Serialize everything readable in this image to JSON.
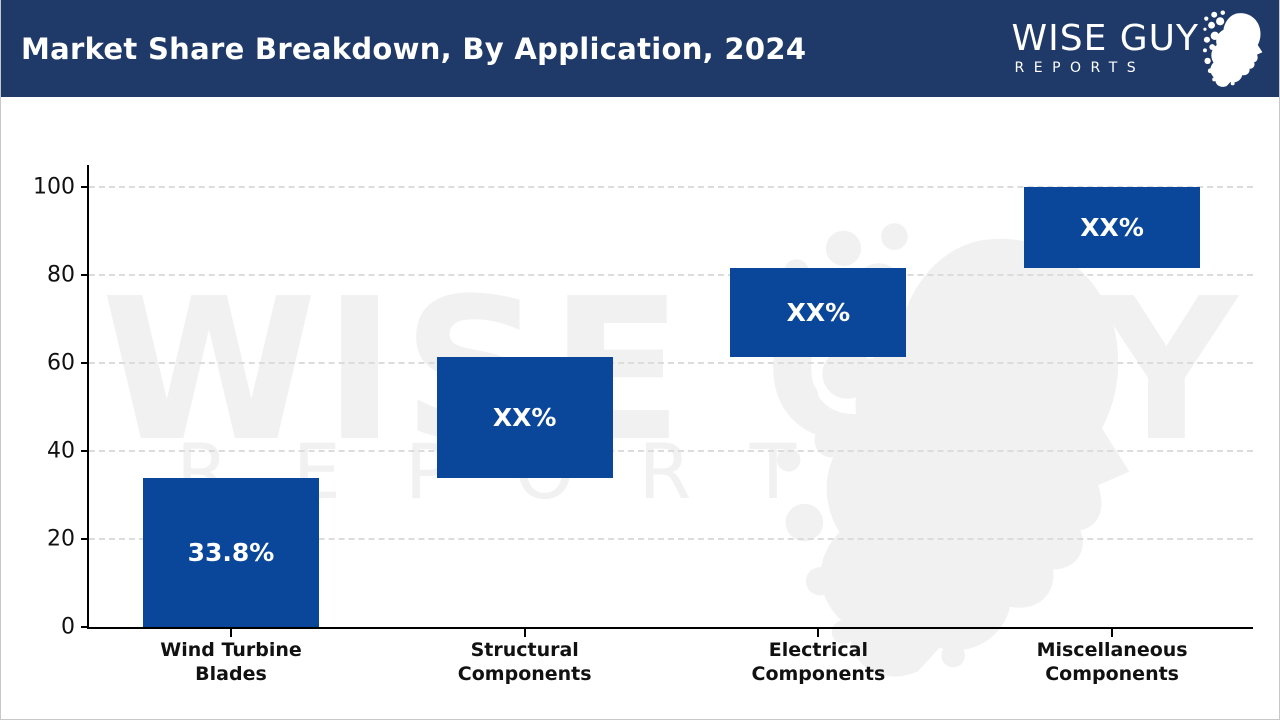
{
  "header": {
    "title": "Market Share Breakdown, By Application, 2024",
    "bg_color": "#1f3a68",
    "logo": {
      "name": "WISE GUY",
      "tagline": "REPORTS"
    }
  },
  "watermark": {
    "name": "WISE GUY",
    "tagline": "REPORTS"
  },
  "chart_data": {
    "type": "bar",
    "subtype": "stacked-waterfall",
    "title": "Market Share Breakdown, By Application, 2024",
    "categories": [
      "Wind Turbine\nBlades",
      "Structural\nComponents",
      "Electrical\nComponents",
      "Miscellaneous\nComponents"
    ],
    "segments": [
      {
        "category": "Wind Turbine Blades",
        "start": 0,
        "end": 33.8,
        "label": "33.8%"
      },
      {
        "category": "Structural Components",
        "start": 33.8,
        "end": 61.3,
        "label": "XX%"
      },
      {
        "category": "Electrical Components",
        "start": 61.3,
        "end": 81.5,
        "label": "XX%"
      },
      {
        "category": "Miscellaneous Components",
        "start": 81.5,
        "end": 100,
        "label": "XX%"
      }
    ],
    "yticks": [
      0,
      20,
      40,
      60,
      80,
      100
    ],
    "ylim": [
      0,
      105
    ],
    "xlabel": "",
    "ylabel": "",
    "grid": true,
    "legend": false,
    "bar_color": "#0a4699",
    "bar_label_color": "#ffffff",
    "gridline_color": "#dcdcdc",
    "axis_color": "#000000"
  }
}
